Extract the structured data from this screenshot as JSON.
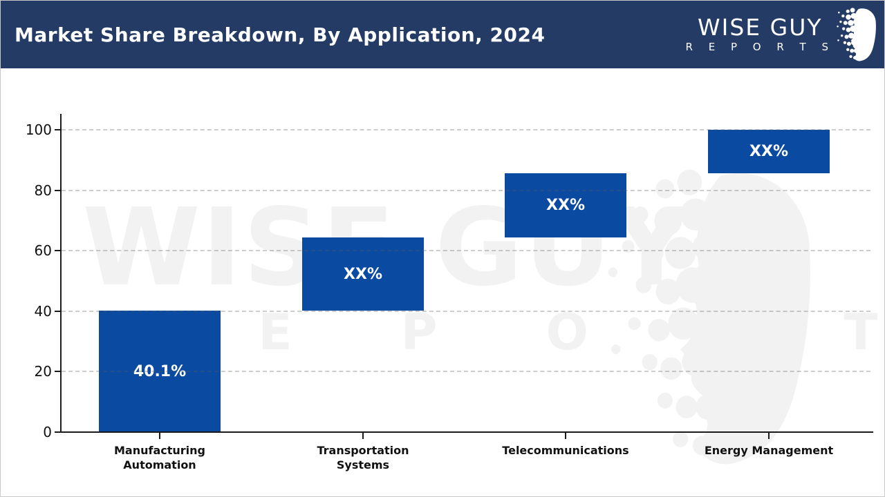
{
  "header": {
    "title": "Market Share Breakdown, By Application, 2024",
    "bg_color": "#243b66",
    "logo": {
      "line1": "WISE GUY",
      "line2": "R E P O R T S",
      "face_icon": "dotted-head-profile"
    }
  },
  "watermark": {
    "line1": "WISE GUY",
    "line2": "R E P O R T S",
    "face_icon": "dotted-head-profile",
    "color": "#f2f2f2"
  },
  "chart_data": {
    "type": "bar",
    "subtype": "waterfall-breakdown",
    "title": "Market Share Breakdown, By Application, 2024",
    "categories": [
      "Manufacturing Automation",
      "Transportation Systems",
      "Telecommunications",
      "Energy Management"
    ],
    "category_lines": [
      [
        "Manufacturing",
        "Automation"
      ],
      [
        "Transportation",
        "Systems"
      ],
      [
        "Telecommunications"
      ],
      [
        "Energy Management"
      ]
    ],
    "segments": [
      {
        "category": "Manufacturing Automation",
        "start": 0,
        "end": 40.1,
        "value_label": "40.1%"
      },
      {
        "category": "Transportation Systems",
        "start": 40.1,
        "end": 64.3,
        "value_label": "XX%"
      },
      {
        "category": "Telecommunications",
        "start": 64.3,
        "end": 85.7,
        "value_label": "XX%"
      },
      {
        "category": "Energy Management",
        "start": 85.7,
        "end": 100,
        "value_label": "XX%"
      }
    ],
    "yticks": [
      0,
      20,
      40,
      60,
      80,
      100
    ],
    "ylim": [
      0,
      105
    ],
    "xlabel": "",
    "ylabel": "",
    "grid": true,
    "grid_style": "dashed-horizontal",
    "legend": false,
    "bar_color": "#0b4aa1",
    "value_label_color": "#ffffff",
    "axis_color": "#1a1a1a"
  }
}
